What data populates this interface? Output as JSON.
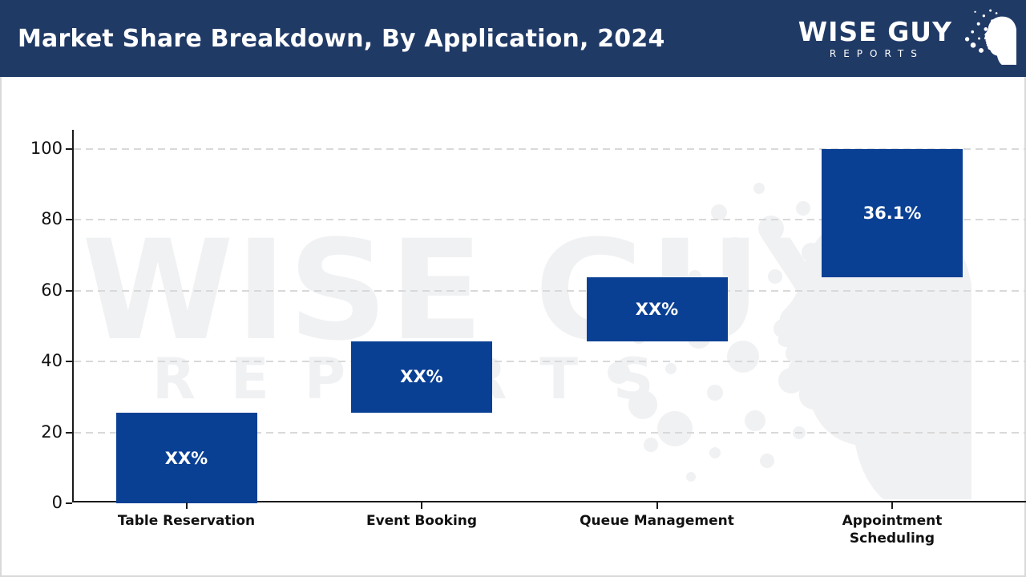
{
  "header": {
    "title": "Market Share Breakdown, By Application, 2024",
    "logo": {
      "brand": "WISE GUY",
      "sub": "REPORTS"
    }
  },
  "watermark": {
    "line1": "WISE GUY",
    "line2": "REPORTS"
  },
  "chart_data": {
    "type": "waterfall",
    "title": "Market Share Breakdown, By Application, 2024",
    "categories": [
      "Table Reservation",
      "Event Booking",
      "Queue Management",
      "Appointment Scheduling"
    ],
    "segments": [
      {
        "category": "Table Reservation",
        "start": 0,
        "end": 25.5,
        "value_label": "XX%"
      },
      {
        "category": "Event Booking",
        "start": 25.5,
        "end": 45.8,
        "value_label": "XX%"
      },
      {
        "category": "Queue Management",
        "start": 45.8,
        "end": 63.9,
        "value_label": "XX%"
      },
      {
        "category": "Appointment Scheduling",
        "start": 63.9,
        "end": 100,
        "value_label": "36.1%"
      }
    ],
    "ylim": [
      0,
      100
    ],
    "yticks": [
      0,
      20,
      40,
      60,
      80,
      100
    ],
    "grid": "dashed-horizontal",
    "legend": "none",
    "bar_color": "#0a4094",
    "bar_label_color": "#ffffff"
  },
  "colors": {
    "header_bg": "#203a66",
    "bar": "#0a4094",
    "axis": "#1a1a1a",
    "grid": "#d9d9d9",
    "watermark": "#f0f1f3",
    "page_border": "#d9d9d9"
  }
}
